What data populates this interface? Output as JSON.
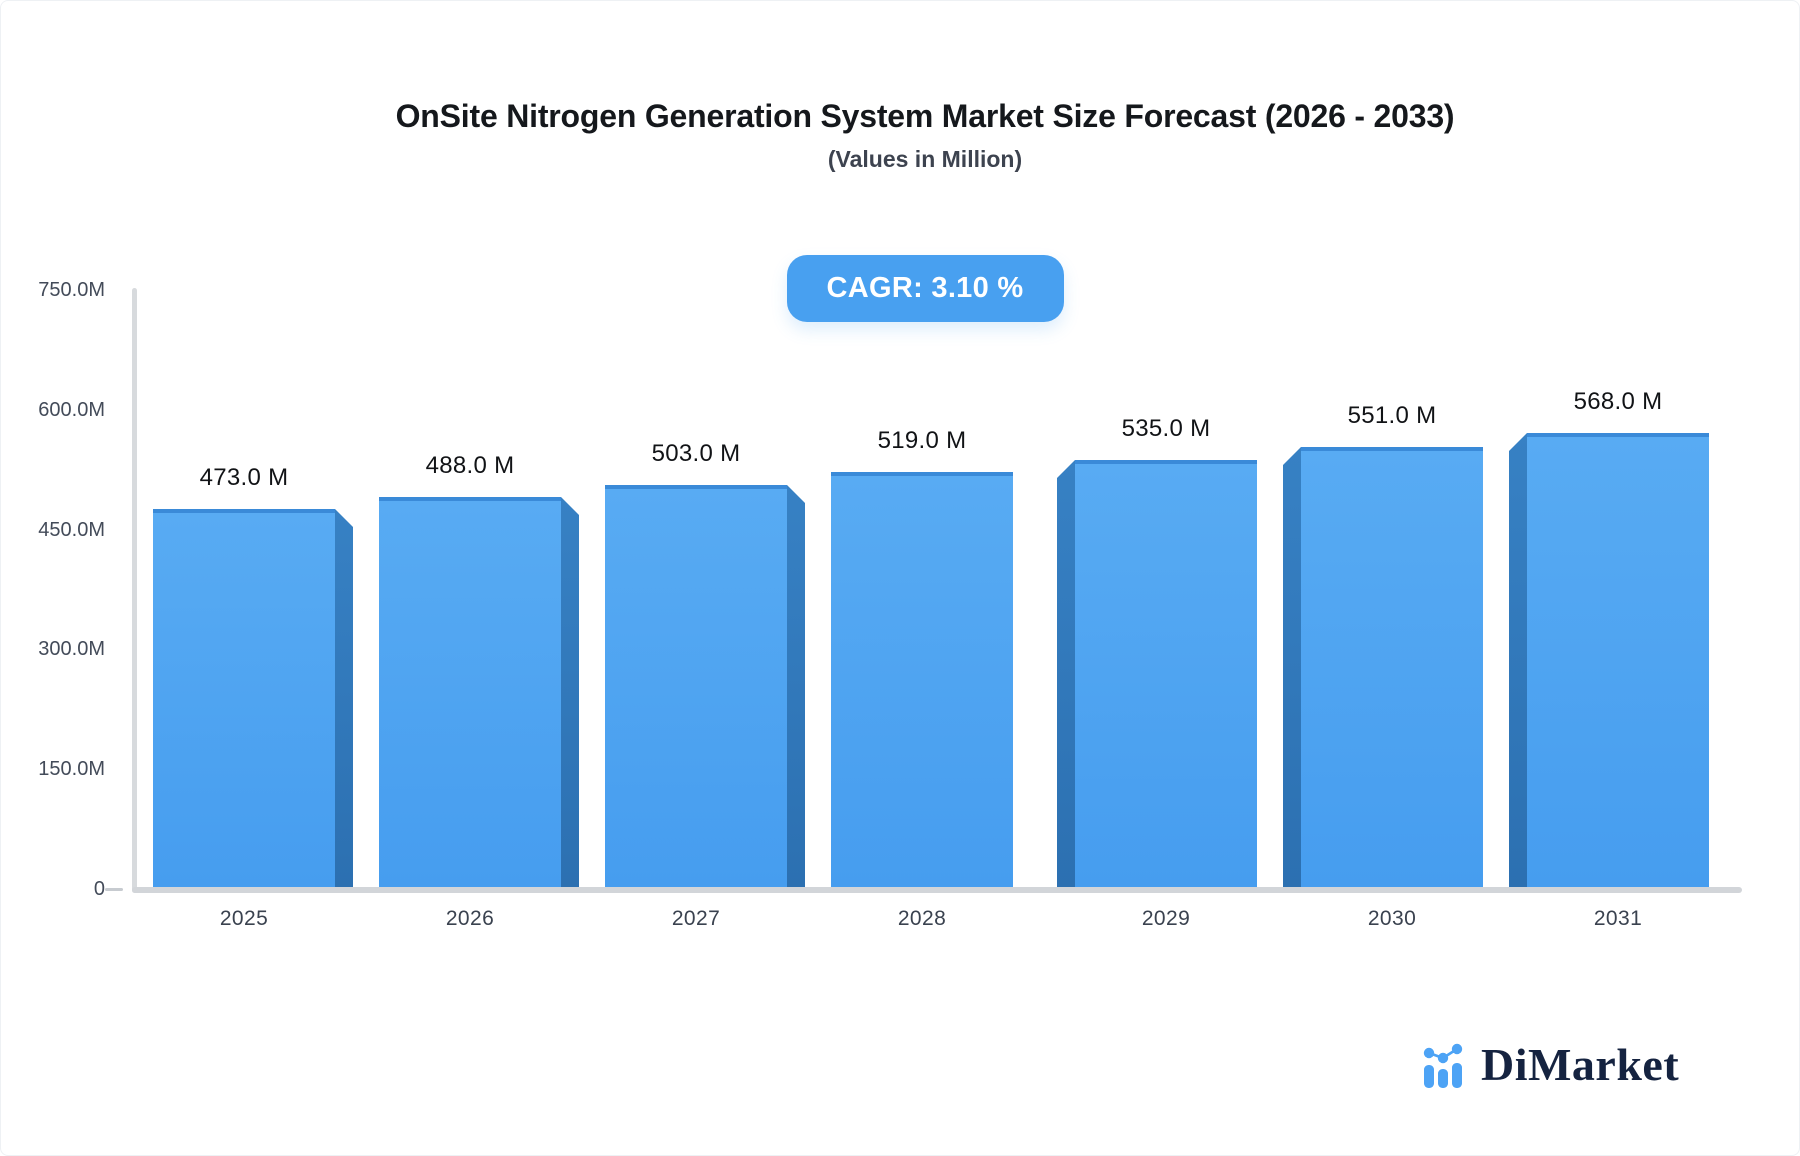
{
  "header": {
    "title": "OnSite Nitrogen Generation System Market Size Forecast (2026 - 2033)",
    "subtitle": "(Values in Million)",
    "cagr_badge": "CAGR: 3.10 %"
  },
  "logo": {
    "text": "DiMarket"
  },
  "colors": {
    "accent": "#48A0F0",
    "bar_face_top": "#58ABF3",
    "bar_face_bottom": "#469DEF",
    "bar_top_line": "#3A8AD8",
    "bar_side": "#2E74B5",
    "axis_line": "#D7DADD",
    "logo_navy": "#152340",
    "logo_blue": "#4DA3F5"
  },
  "chart_data": {
    "type": "bar",
    "title": "OnSite Nitrogen Generation System Market Size Forecast (2026 - 2033)",
    "subtitle": "(Values in Million)",
    "cagr_percent": "3.10",
    "unit": "Million",
    "categories": [
      "2025",
      "2026",
      "2027",
      "2028",
      "2029",
      "2030",
      "2031"
    ],
    "values": [
      473,
      488,
      503,
      519,
      535,
      551,
      568
    ],
    "bar_labels": [
      "473.0 M",
      "488.0 M",
      "503.0 M",
      "519.0 M",
      "535.0 M",
      "551.0 M",
      "568.0 M"
    ],
    "yticks": [
      {
        "value": 750,
        "label": "750.0M"
      },
      {
        "value": 600,
        "label": "600.0M"
      },
      {
        "value": 450,
        "label": "450.0M"
      },
      {
        "value": 300,
        "label": "300.0M"
      },
      {
        "value": 150,
        "label": "150.0M"
      },
      {
        "value": 0,
        "label": "0"
      }
    ],
    "ylim": [
      0,
      750
    ],
    "xlabel": "",
    "ylabel": "",
    "grid": false,
    "legend": false,
    "bar_style": "3d-bevel"
  }
}
